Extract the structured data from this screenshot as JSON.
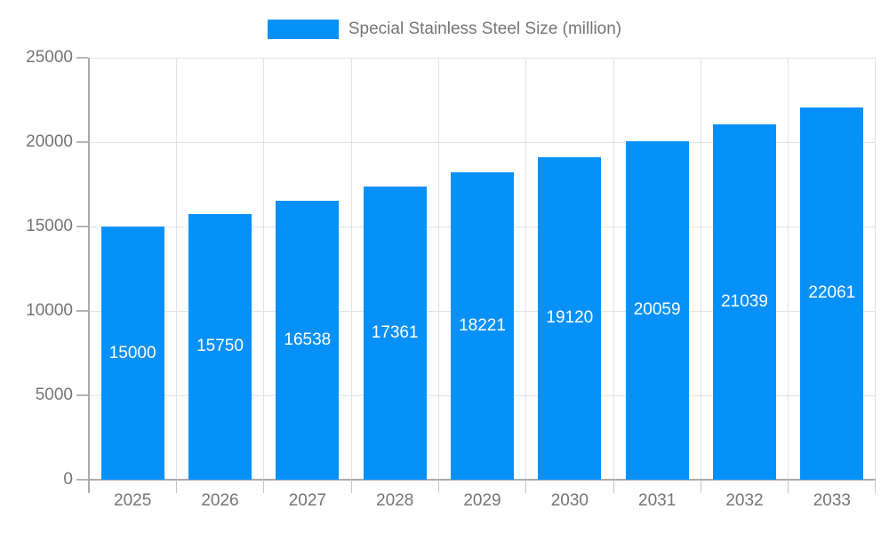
{
  "chart_data": {
    "type": "bar",
    "title": "Special Stainless Steel Size (million)",
    "categories": [
      "2025",
      "2026",
      "2027",
      "2028",
      "2029",
      "2030",
      "2031",
      "2032",
      "2033"
    ],
    "values": [
      15000,
      15750,
      16538,
      17361,
      18221,
      19120,
      20059,
      21039,
      22061
    ],
    "series": [
      {
        "name": "Special Stainless Steel Size (million)",
        "values": [
          15000,
          15750,
          16538,
          17361,
          18221,
          19120,
          20059,
          21039,
          22061
        ]
      }
    ],
    "xlabel": "",
    "ylabel": "",
    "ylim": [
      0,
      25000
    ],
    "y_ticks": [
      0,
      5000,
      10000,
      15000,
      20000,
      25000
    ],
    "grid": true,
    "legend_position": "top",
    "bar_value_labels": "inside-center",
    "colors": {
      "bar": "#0691fa",
      "bar_label": "#ffffff",
      "axis_text": "#757575",
      "gridline": "#e3e3e3",
      "axis_line": "#ababab",
      "tick": "#b5b5b5",
      "background": "#ffffff"
    }
  }
}
